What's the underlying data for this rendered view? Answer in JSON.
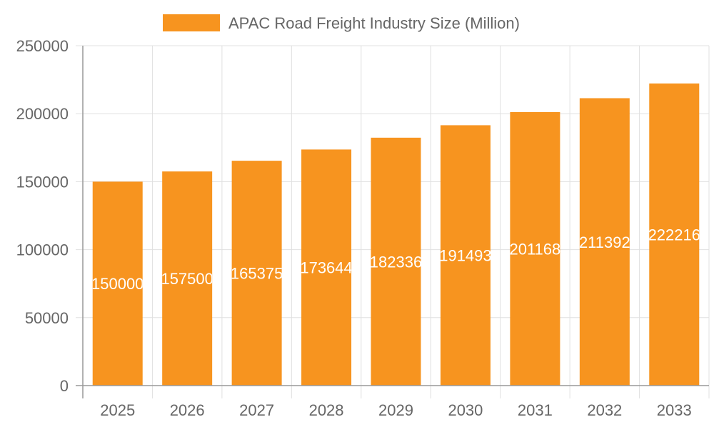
{
  "chart_data": {
    "type": "bar",
    "title": "",
    "xlabel": "",
    "ylabel": "",
    "categories": [
      "2025",
      "2026",
      "2027",
      "2028",
      "2029",
      "2030",
      "2031",
      "2032",
      "2033"
    ],
    "series": [
      {
        "name": "APAC Road Freight Industry Size (Million)",
        "values": [
          150000,
          157500,
          165375,
          173644,
          182336,
          191493,
          201168,
          211392,
          222216
        ],
        "color": "#F7941F"
      }
    ],
    "ylim": [
      0,
      250000
    ],
    "yticks": [
      0,
      50000,
      100000,
      150000,
      200000,
      250000
    ],
    "grid": true,
    "legend": "top",
    "data_labels": true,
    "data_label_color": "#FFFFFF"
  }
}
